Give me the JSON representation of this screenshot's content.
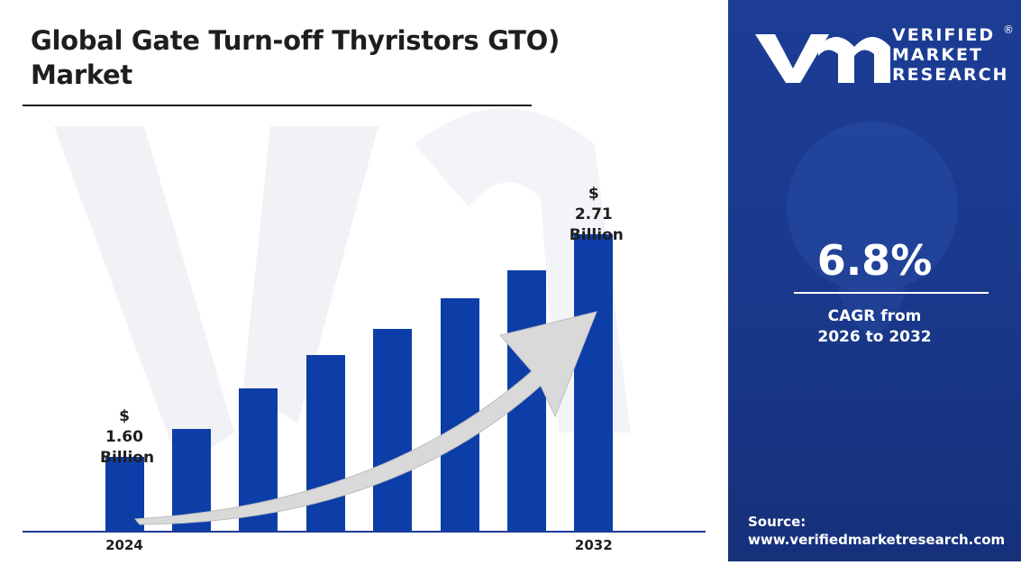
{
  "chart_data": {
    "type": "bar",
    "title": "Global Gate Turn-off Thyristors GTO) Market",
    "categories": [
      "2024",
      null,
      null,
      null,
      null,
      null,
      null,
      "2032"
    ],
    "values": [
      1.6,
      1.74,
      1.94,
      2.11,
      2.24,
      2.39,
      2.53,
      2.71
    ],
    "value_labels": [
      "$ 1.60 Billion",
      null,
      null,
      null,
      null,
      null,
      null,
      "$ 2.71 Billion"
    ],
    "color": "#0d3ea8"
  },
  "panel": {
    "logo": [
      "VERIFIED",
      "MARKET",
      "RESEARCH"
    ],
    "registered": "®",
    "cagr": "6.8%",
    "cagr_text": "CAGR from 2026 to 2032",
    "source_label": "Source:",
    "source_url": "www.verifiedmarketresearch.com"
  }
}
